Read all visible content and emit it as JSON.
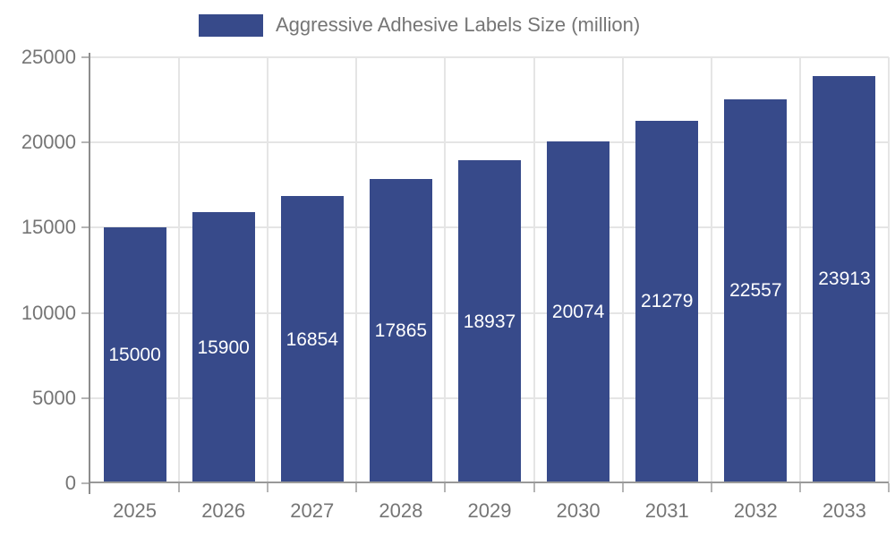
{
  "chart_data": {
    "type": "bar",
    "legend": {
      "label": "Aggressive Adhesive Labels Size (million)",
      "position": "top"
    },
    "categories": [
      "2025",
      "2026",
      "2027",
      "2028",
      "2029",
      "2030",
      "2031",
      "2032",
      "2033"
    ],
    "values": [
      15000,
      15900,
      16854,
      17865,
      18937,
      20074,
      21279,
      22557,
      23913
    ],
    "value_labels": [
      "15000",
      "15900",
      "16854",
      "17865",
      "18937",
      "20074",
      "21279",
      "22557",
      "23913"
    ],
    "xlabel": "",
    "ylabel": "",
    "ylim": [
      0,
      25000
    ],
    "yticks": [
      0,
      5000,
      10000,
      15000,
      20000,
      25000
    ],
    "ytick_labels": [
      "0",
      "5000",
      "10000",
      "15000",
      "20000",
      "25000"
    ],
    "grid": true,
    "bar_label_position": "inside-center",
    "colors": {
      "bar": "#374a8a",
      "bar_label_text": "#ffffff",
      "axis_line": "#8c8c8c",
      "baseline": "#999999",
      "tick_mark": "#b5b5b5",
      "tick_text": "#757575",
      "gridline": "#e5e5e5",
      "legend_text": "#757575",
      "background": "#ffffff"
    }
  }
}
